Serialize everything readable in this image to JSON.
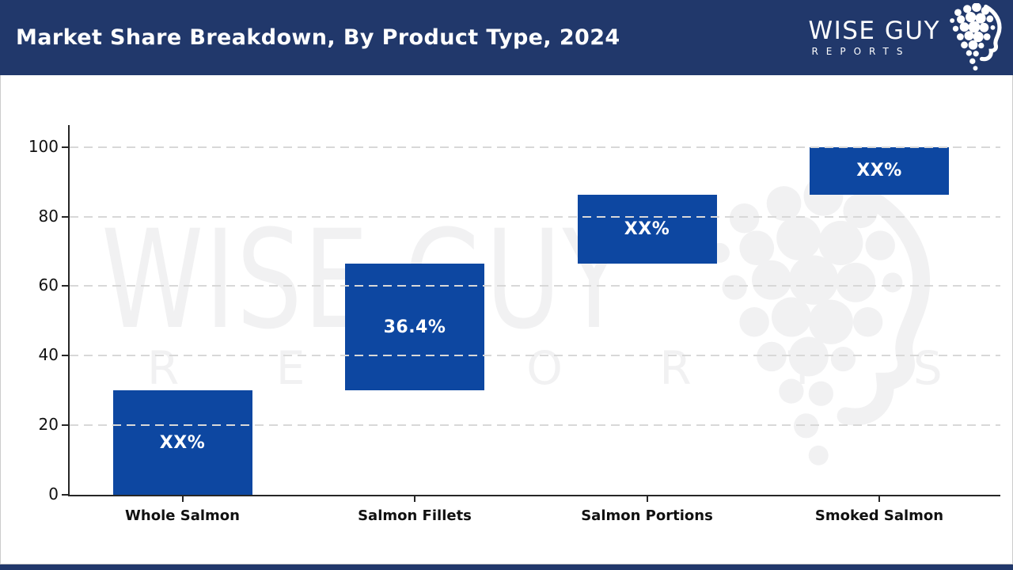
{
  "header": {
    "title": "Market Share Breakdown, By Product Type, 2024",
    "logo": {
      "line1": "WISE GUY",
      "line2": "REPORTS",
      "icon": "dotted-face-profile-icon"
    }
  },
  "watermark": {
    "line1": "WISE GUY",
    "line2": "R E P O R T S",
    "icon": "dotted-face-profile-watermark"
  },
  "chart_data": {
    "type": "bar",
    "subtype": "waterfall",
    "title": "Market Share Breakdown, By Product Type, 2024",
    "categories": [
      "Whole Salmon",
      "Salmon Fillets",
      "Salmon Portions",
      "Smoked Salmon"
    ],
    "segments": [
      {
        "category": "Whole Salmon",
        "start": 0,
        "end": 30,
        "label": "XX%"
      },
      {
        "category": "Salmon Fillets",
        "start": 30,
        "end": 66.4,
        "label": "36.4%"
      },
      {
        "category": "Salmon Portions",
        "start": 66.4,
        "end": 86.4,
        "label": "XX%"
      },
      {
        "category": "Smoked Salmon",
        "start": 86.4,
        "end": 100,
        "label": "XX%"
      }
    ],
    "yticks": [
      0,
      20,
      40,
      60,
      80,
      100
    ],
    "ylim": [
      0,
      105
    ],
    "xlabel": "",
    "ylabel": "",
    "grid": "dashed-horizontal",
    "legend": "none",
    "bar_value_label_position": "center"
  },
  "colors": {
    "header_bg": "#21386b",
    "footer_bg": "#21386b",
    "bar": "#0d47a1",
    "bar_label": "#ffffff",
    "grid": "#d8d8d8",
    "axis": "#262626",
    "tick_text": "#111111",
    "watermark": "#f1f1f2",
    "card_border": "#cccccc"
  }
}
